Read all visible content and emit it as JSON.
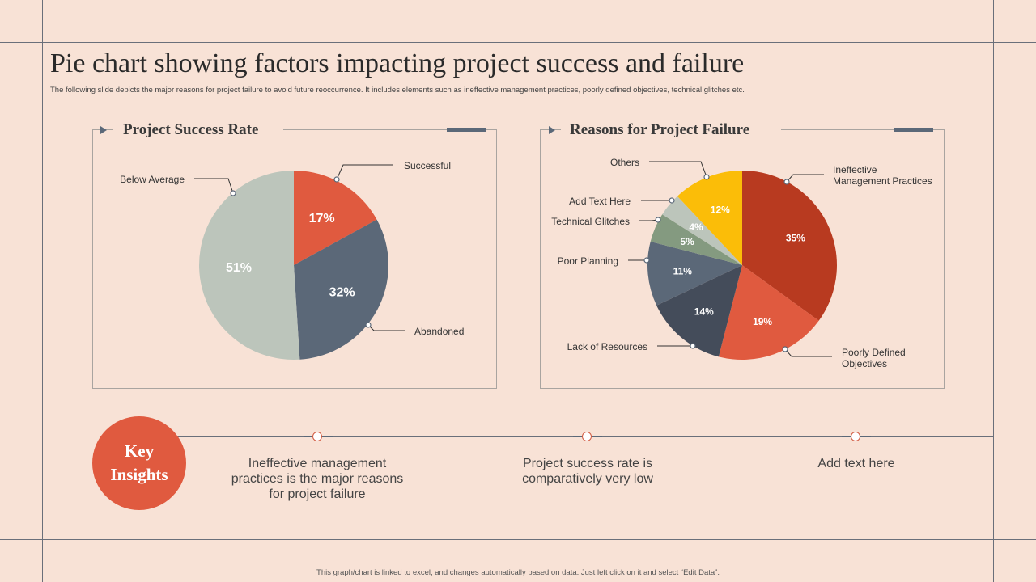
{
  "title": "Pie chart showing factors impacting project success and failure",
  "subtitle": "The following slide depicts the major reasons for project failure to avoid future reoccurrence. It includes elements such as ineffective management practices, poorly defined objectives, technical glitches etc.",
  "footer": "This graph/chart is linked to excel, and changes automatically based on data. Just left click on it and select “Edit Data”.",
  "key_insights": {
    "label_line1": "Key",
    "label_line2": "Insights",
    "items": [
      "Ineffective management practices is the major reasons for project failure",
      "Project success rate is comparatively very low",
      "Add text here"
    ]
  },
  "chart_data": [
    {
      "type": "pie",
      "title": "Project Success Rate",
      "slices": [
        {
          "label": "Successful",
          "value": 17,
          "display": "17%",
          "color": "#e05a3f"
        },
        {
          "label": "Abandoned",
          "value": 32,
          "display": "32%",
          "color": "#5b6878"
        },
        {
          "label": "Below Average",
          "value": 51,
          "display": "51%",
          "color": "#bcc5bb"
        }
      ]
    },
    {
      "type": "pie",
      "title": "Reasons for Project Failure",
      "slices": [
        {
          "label": "Ineffective Management Practices",
          "value": 35,
          "display": "35%",
          "color": "#b83a20"
        },
        {
          "label": "Poorly Defined Objectives",
          "value": 19,
          "display": "19%",
          "color": "#e05a3f"
        },
        {
          "label": "Lack of Resources",
          "value": 14,
          "display": "14%",
          "color": "#444c5a"
        },
        {
          "label": "Poor Planning",
          "value": 11,
          "display": "11%",
          "color": "#5b6878"
        },
        {
          "label": "Technical Glitches",
          "value": 5,
          "display": "5%",
          "color": "#849a80"
        },
        {
          "label": "Add Text Here",
          "value": 4,
          "display": "4%",
          "color": "#bcc5bb"
        },
        {
          "label": "Others",
          "value": 12,
          "display": "12%",
          "color": "#fbbd08"
        }
      ]
    }
  ]
}
